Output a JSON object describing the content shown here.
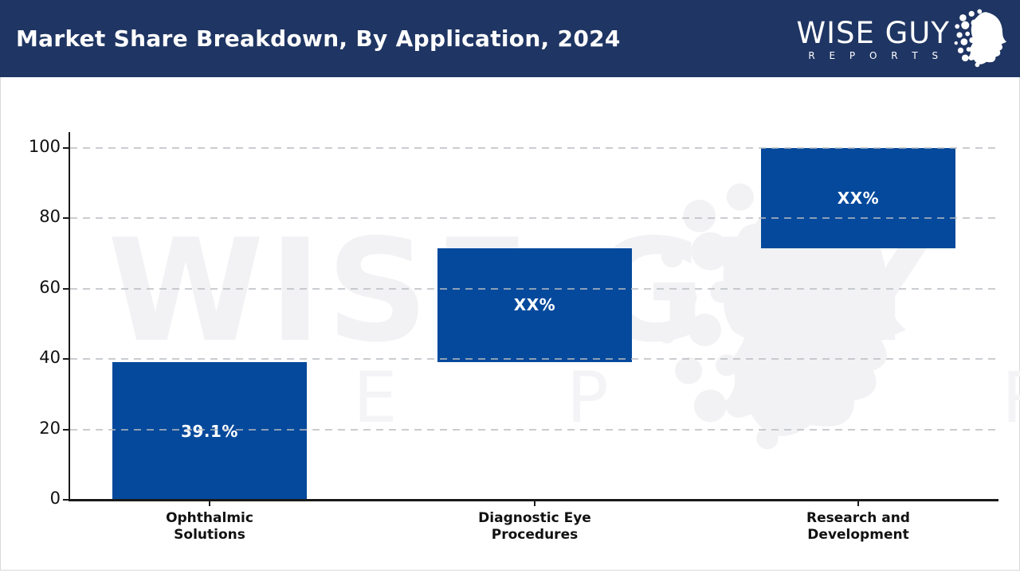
{
  "header": {
    "title": "Market Share Breakdown, By Application, 2024",
    "logo": {
      "line1": "WISE GUY",
      "line2": "R E P O R T S"
    }
  },
  "watermark": {
    "line1": "WISE GUY",
    "line2": "R E P O R T S"
  },
  "chart_data": {
    "type": "bar",
    "subtype": "waterfall",
    "title": "Market Share Breakdown, By Application, 2024",
    "categories": [
      "Ophthalmic\nSolutions",
      "Diagnostic Eye\nProcedures",
      "Research and\nDevelopment"
    ],
    "bars": [
      {
        "category": "Ophthalmic Solutions",
        "start": 0,
        "end": 39.1,
        "label": "39.1%"
      },
      {
        "category": "Diagnostic Eye Procedures",
        "start": 39.1,
        "end": 71.6,
        "label": "XX%"
      },
      {
        "category": "Research and Development",
        "start": 71.6,
        "end": 100,
        "label": "XX%"
      }
    ],
    "yticks": [
      0,
      20,
      40,
      60,
      80,
      100
    ],
    "ylim": [
      0,
      105
    ],
    "grid": "dashed-horizontal",
    "legend": "none",
    "xlabel": "",
    "ylabel": ""
  },
  "colors": {
    "header_bg": "#1f3563",
    "bar": "#04499c",
    "bar_label": "#ffffff",
    "axis": "#1a1a1a",
    "grid": "#b9bcc0",
    "watermark": "#f2f2f4",
    "page_border": "#d9d9d9"
  }
}
